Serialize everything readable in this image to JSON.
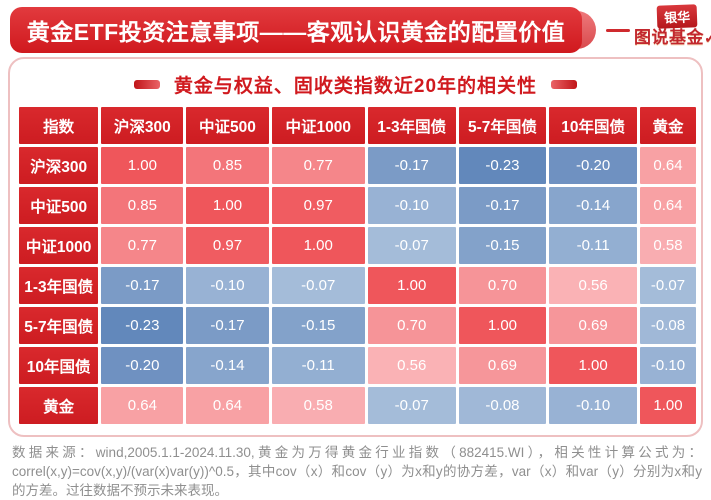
{
  "header": {
    "title": "黄金ETF投资注意事项——客观认识黄金的配置价值",
    "logo_top": "银华",
    "logo_bottom": "图说基金",
    "logo_check": "✓"
  },
  "subtitle": {
    "text": "黄金与权益、固收类指数近20年的相关性"
  },
  "chart_data": {
    "type": "heatmap",
    "title": "黄金与权益、固收类指数近20年的相关性",
    "columns": [
      "指数",
      "沪深300",
      "中证500",
      "中证1000",
      "1-3年国债",
      "5-7年国债",
      "10年国债",
      "黄金"
    ],
    "rows": [
      {
        "label": "沪深300",
        "values": [
          1.0,
          0.85,
          0.77,
          -0.17,
          -0.23,
          -0.2,
          0.64
        ]
      },
      {
        "label": "中证500",
        "values": [
          0.85,
          1.0,
          0.97,
          -0.1,
          -0.17,
          -0.14,
          0.64
        ]
      },
      {
        "label": "中证1000",
        "values": [
          0.77,
          0.97,
          1.0,
          -0.07,
          -0.15,
          -0.11,
          0.58
        ]
      },
      {
        "label": "1-3年国债",
        "values": [
          -0.17,
          -0.1,
          -0.07,
          1.0,
          0.7,
          0.56,
          -0.07
        ]
      },
      {
        "label": "5-7年国债",
        "values": [
          -0.23,
          -0.17,
          -0.15,
          0.7,
          1.0,
          0.69,
          -0.08
        ]
      },
      {
        "label": "10年国债",
        "values": [
          -0.2,
          -0.14,
          -0.11,
          0.56,
          0.69,
          1.0,
          -0.1
        ]
      },
      {
        "label": "黄金",
        "values": [
          0.64,
          0.64,
          0.58,
          -0.07,
          -0.08,
          -0.1,
          1.0
        ]
      }
    ],
    "value_decimals": 2,
    "color_scale": {
      "header_red": "#d5282c",
      "pos_low": "#fbbec1",
      "pos_high": "#ef565b",
      "pos_domain": [
        0.5,
        1.0
      ],
      "neg_low": "#acc2dd",
      "neg_high": "#5a81b7",
      "neg_domain": [
        0.05,
        0.25
      ]
    }
  },
  "footer": {
    "text": "数据来源：wind,2005.1.1-2024.11.30,黄金为万得黄金行业指数（882415.WI），相关性计算公式为：correl(x,y)=cov(x,y)/(var(x)var(y))^0.5，其中cov（x）和cov（y）为x和y的协方差，var（x）和var（y）分别为x和y的方差。过往数据不预示未来表现。"
  }
}
